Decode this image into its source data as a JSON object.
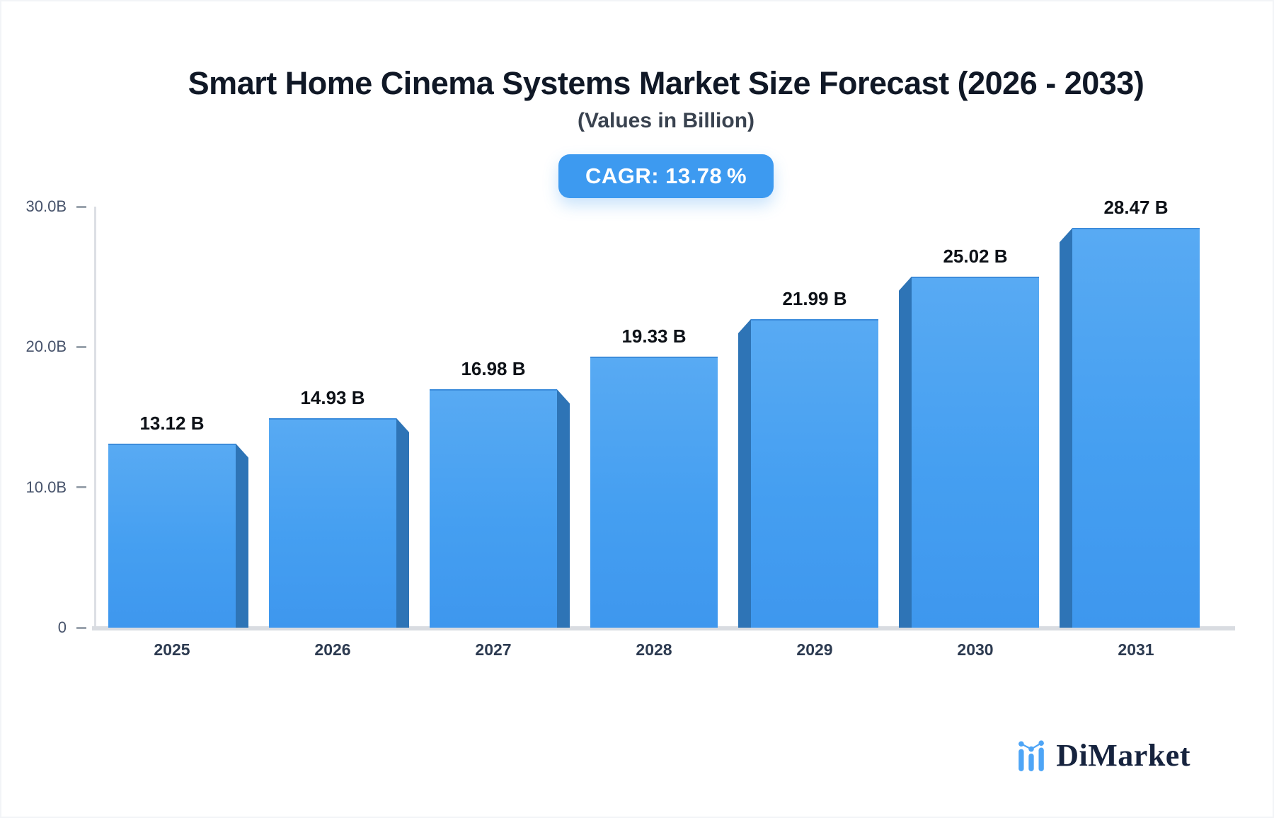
{
  "chart_data": {
    "type": "bar",
    "title": "Smart Home Cinema Systems Market Size Forecast (2026 - 2033)",
    "subtitle": "(Values in Billion)",
    "annotation": "CAGR: 13.78 %",
    "categories": [
      "2025",
      "2026",
      "2027",
      "2028",
      "2029",
      "2030",
      "2031"
    ],
    "values": [
      13.12,
      14.93,
      16.98,
      19.33,
      21.99,
      25.02,
      28.47
    ],
    "value_labels": [
      "13.12 B",
      "14.93 B",
      "16.98 B",
      "19.33 B",
      "21.99 B",
      "25.02 B",
      "28.47 B"
    ],
    "y_ticks": {
      "labels": [
        "30.0B",
        "20.0B",
        "10.0B",
        "0"
      ],
      "values": [
        30,
        20,
        10,
        0
      ]
    },
    "ylim": [
      0,
      30
    ],
    "xlabel": "",
    "ylabel": "",
    "grid": false,
    "legend": false,
    "bevel_sides": [
      "right",
      "right",
      "right",
      "none",
      "left",
      "left",
      "left"
    ]
  },
  "brand": {
    "name": "DiMarket",
    "icon": "bar-line-chart-icon"
  },
  "colors": {
    "bar_fill_top": "#58AAF3",
    "bar_fill_bottom": "#3E97EE",
    "bar_side": "#2E74B6",
    "badge_bg": "#3D9AF0",
    "badge_text": "#FFFFFF",
    "axis_line": "#DADDE2",
    "tick_text": "#47536B",
    "xlabel_text": "#2C3A50",
    "value_text": "#0D1117",
    "title_text": "#101826",
    "brand_blue": "#4EA5F6",
    "brand_navy": "#16233E"
  }
}
